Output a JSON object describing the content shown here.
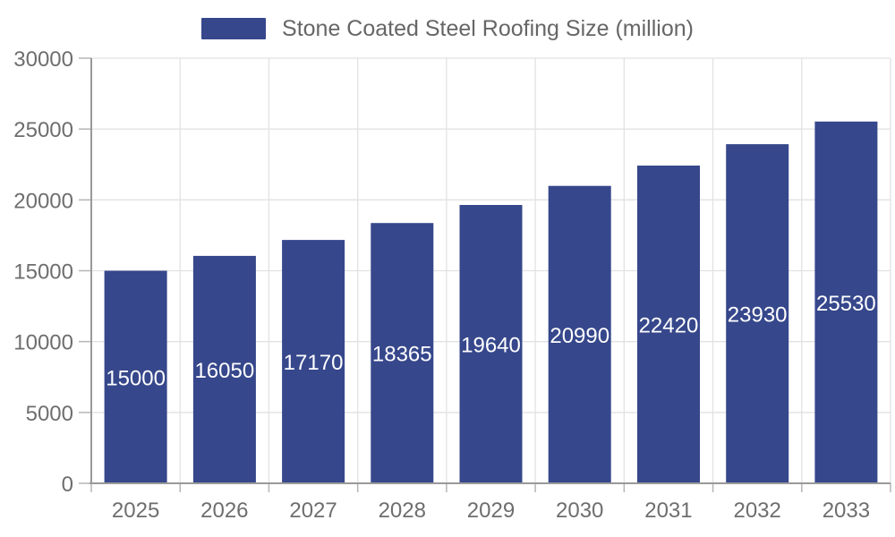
{
  "chart_data": {
    "type": "bar",
    "title": "",
    "legend": {
      "label": "Stone Coated Steel Roofing Size (million)",
      "position": "top"
    },
    "categories": [
      "2025",
      "2026",
      "2027",
      "2028",
      "2029",
      "2030",
      "2031",
      "2032",
      "2033"
    ],
    "series": [
      {
        "name": "Stone Coated Steel Roofing Size (million)",
        "values": [
          15000,
          16050,
          17170,
          18365,
          19640,
          20990,
          22420,
          23930,
          25530
        ]
      }
    ],
    "xlabel": "",
    "ylabel": "",
    "ylim": [
      0,
      30000
    ],
    "yticks": [
      0,
      5000,
      10000,
      15000,
      20000,
      25000,
      30000
    ],
    "grid": {
      "horizontal": true,
      "vertical": true
    },
    "value_labels": {
      "position": "inside-center"
    },
    "colors": {
      "bar": "#36478B",
      "grid": "#e2e2e2",
      "axis": "#999999",
      "tick": "#b5b5b5",
      "axis_text": "#6e6e6e",
      "value_text": "#ffffff",
      "legend_text": "#666666",
      "background": "#ffffff"
    }
  }
}
